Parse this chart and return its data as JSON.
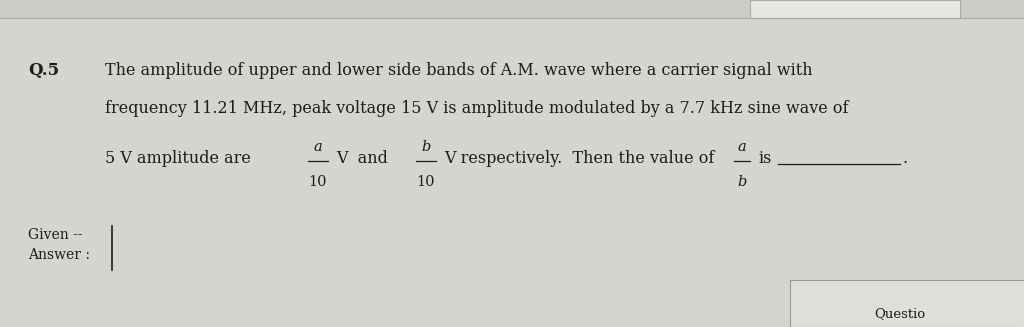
{
  "background_color": "#cccbc6",
  "page_color": "#d6d4ce",
  "text_color": "#1c1c1c",
  "question_label": "Q.5",
  "line1": "The amplitude of upper and lower side bands of A.M. wave where a carrier signal with",
  "line2": "frequency 11.21 MHz, peak voltage 15 V is amplitude modulated by a 7.7 kHz sine wave of",
  "line3_pre": "5 V amplitude are ",
  "frac1_num": "a",
  "frac1_den": "10",
  "line3_mid": "V  and ",
  "frac2_num": "b",
  "frac2_den": "10",
  "line3_post": "V respectively.  Then the value of ",
  "frac3_num": "a",
  "frac3_den": "b",
  "line3_end": "is",
  "given_text": "Given --",
  "answer_text": "Answer :",
  "top_box_color": "#e8e7e2",
  "bottom_box_color": "#e0deda",
  "questio_text": "Questio",
  "figsize": [
    10.24,
    3.27
  ],
  "dpi": 100
}
